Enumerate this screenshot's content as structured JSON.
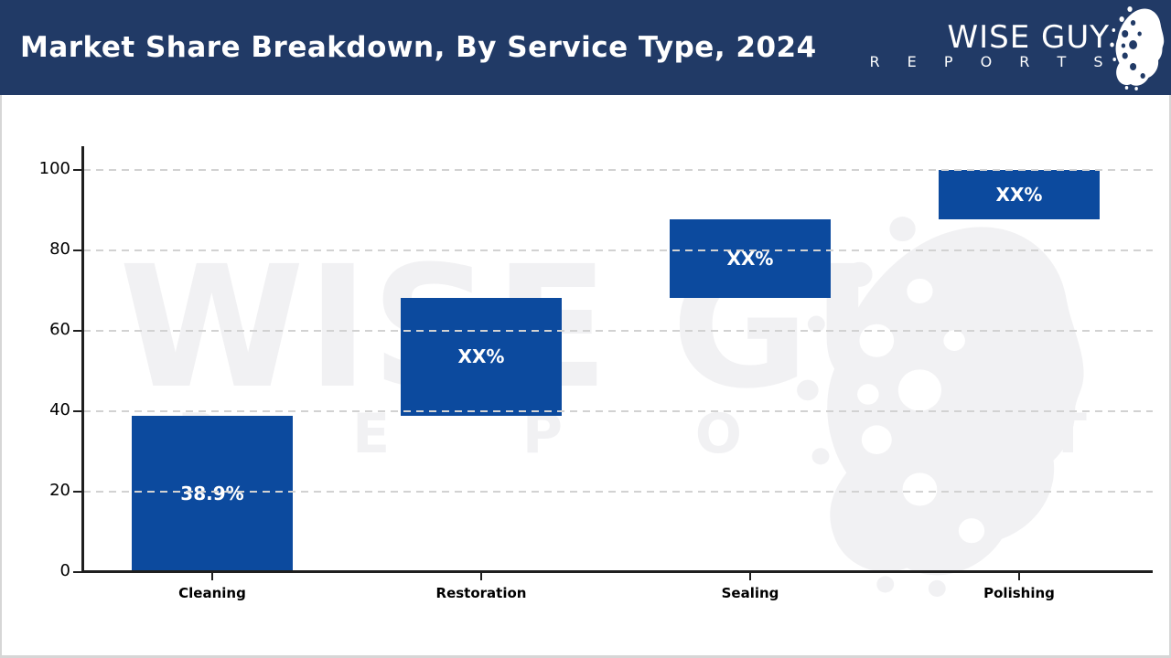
{
  "header": {
    "title": "Market Share Breakdown, By Service Type, 2024",
    "logo": {
      "primary": "WISE GUY",
      "secondary": "R E P O R T S"
    }
  },
  "watermark": {
    "primary": "WISE GU",
    "secondary": "R E P O R T S"
  },
  "colors": {
    "header_bg": "#213a66",
    "bar_fill": "#0c4a9e",
    "bar_label": "#ffffff",
    "gridline": "#d2d2d2",
    "axis": "#1f1f1f",
    "watermark_text": "#f1f1f3",
    "frame_border": "#d6d6d6"
  },
  "chart_data": {
    "type": "bar",
    "subtype": "waterfall",
    "title": "Market Share Breakdown, By Service Type, 2024",
    "categories": [
      "Cleaning",
      "Restoration",
      "Sealing",
      "Polishing"
    ],
    "segments": [
      {
        "category": "Cleaning",
        "start": 0,
        "end": 38.9,
        "label": "38.9%"
      },
      {
        "category": "Restoration",
        "start": 38.9,
        "end": 68.1,
        "label": "XX%"
      },
      {
        "category": "Sealing",
        "start": 68.1,
        "end": 87.7,
        "label": "XX%"
      },
      {
        "category": "Polishing",
        "start": 87.7,
        "end": 100,
        "label": "XX%"
      }
    ],
    "values_pct": [
      38.9,
      29.2,
      19.6,
      12.3
    ],
    "ylim": [
      0,
      100
    ],
    "yticks": [
      0,
      20,
      40,
      60,
      80,
      100
    ],
    "gridlines": [
      20,
      40,
      60,
      80,
      100
    ],
    "grid_style": "dashed",
    "xlabel": "",
    "ylabel": "",
    "legend": null
  }
}
